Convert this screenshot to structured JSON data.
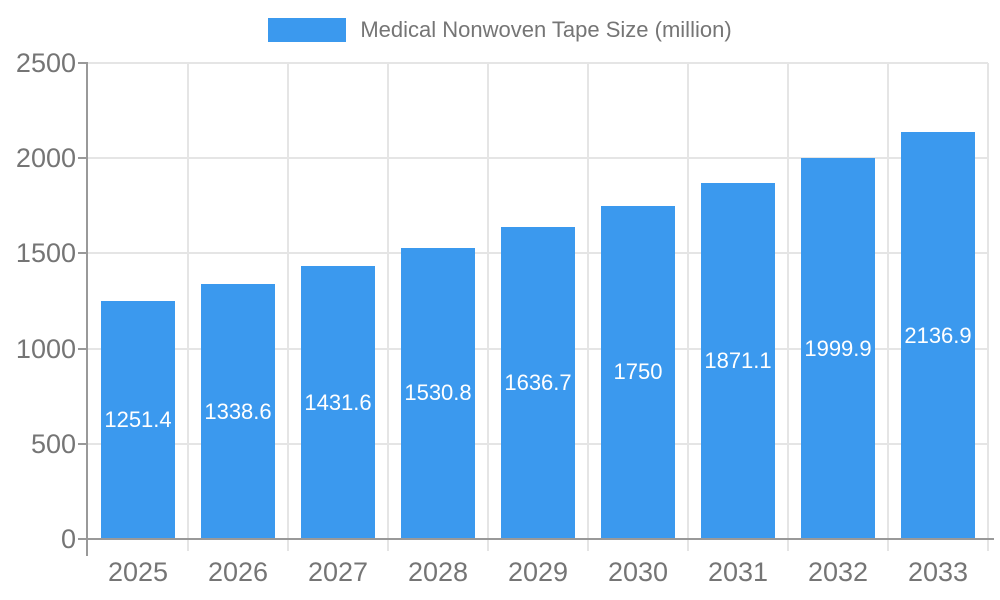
{
  "legend": {
    "entries": [
      {
        "label": "Medical Nonwoven Tape Size (million)",
        "swatch_color": "#3B99EE"
      }
    ],
    "position": "top"
  },
  "chart_data": {
    "type": "bar",
    "title": "Medical Nonwoven Tape Size (million)",
    "categories": [
      "2025",
      "2026",
      "2027",
      "2028",
      "2029",
      "2030",
      "2031",
      "2032",
      "2033"
    ],
    "values": [
      1251.4,
      1338.6,
      1431.6,
      1530.8,
      1636.7,
      1750,
      1871.1,
      1999.9,
      2136.9
    ],
    "value_labels": [
      "1251.4",
      "1338.6",
      "1431.6",
      "1530.8",
      "1636.7",
      "1750",
      "1871.1",
      "1999.9",
      "2136.9"
    ],
    "xlabel": "",
    "ylabel": "",
    "ylim": [
      0,
      2500
    ],
    "y_ticks": [
      0,
      500,
      1000,
      1500,
      2000,
      2500
    ],
    "y_tick_labels": [
      "0",
      "500",
      "1000",
      "1500",
      "2000",
      "2500"
    ],
    "grid": true,
    "legend_position": "top",
    "bar_color": "#3B99EE",
    "value_label_color": "#FFFFFF",
    "axis_text_color": "#757575",
    "grid_color": "#E5E5E5",
    "axis_line_color": "#999999"
  }
}
